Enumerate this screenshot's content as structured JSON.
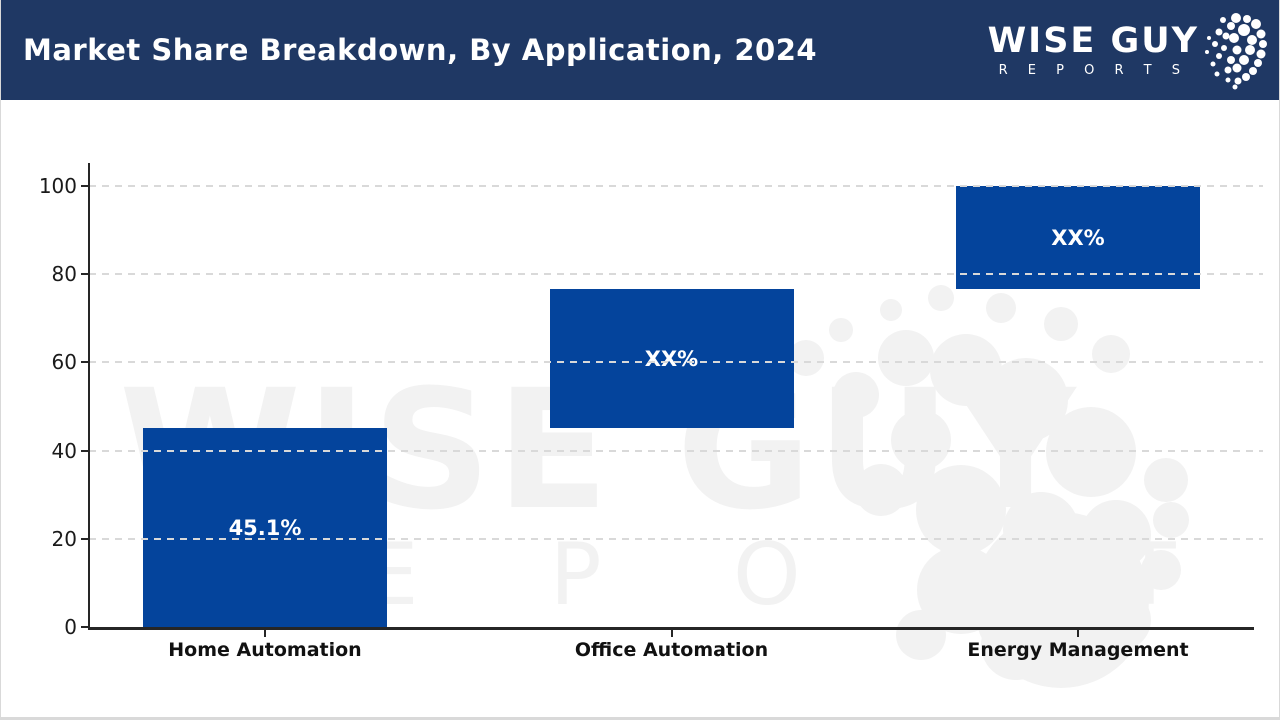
{
  "header": {
    "title": "Market Share Breakdown, By Application, 2024",
    "logo": {
      "name": "WISE GUY",
      "subtitle": "R E P O R T S"
    }
  },
  "watermark": {
    "line1": "WISE GUY",
    "line2": "R E P O R T S"
  },
  "chart_data": {
    "type": "bar",
    "subtype": "floating-waterfall-segments",
    "title": "Market Share Breakdown, By Application, 2024",
    "categories": [
      "Home Automation",
      "Office Automation",
      "Energy Management"
    ],
    "bars": [
      {
        "category": "Home Automation",
        "value_label": "45.1%",
        "start": 0,
        "end": 45.1
      },
      {
        "category": "Office Automation",
        "value_label": "XX%",
        "start": 45.1,
        "end": 76.6
      },
      {
        "category": "Energy Management",
        "value_label": "XX%",
        "start": 76.6,
        "end": 100
      }
    ],
    "xlabel": "",
    "ylabel": "",
    "ylim": [
      0,
      100
    ],
    "yticks": [
      0,
      20,
      40,
      60,
      80,
      100
    ],
    "grid": "horizontal-dashed-over-bars",
    "legend_position": "none",
    "bar_color": "#04449c",
    "value_label_color": "#ffffff"
  },
  "colors": {
    "header_bg": "#1f3864",
    "bar": "#04449c",
    "grid": "#d9d9d9",
    "axis": "#262626",
    "tick_text": "#1a1a1a",
    "category_text": "#111111",
    "watermark": "#f2f2f2",
    "page_border": "#d9d9d9",
    "logo_text": "#ffffff"
  }
}
